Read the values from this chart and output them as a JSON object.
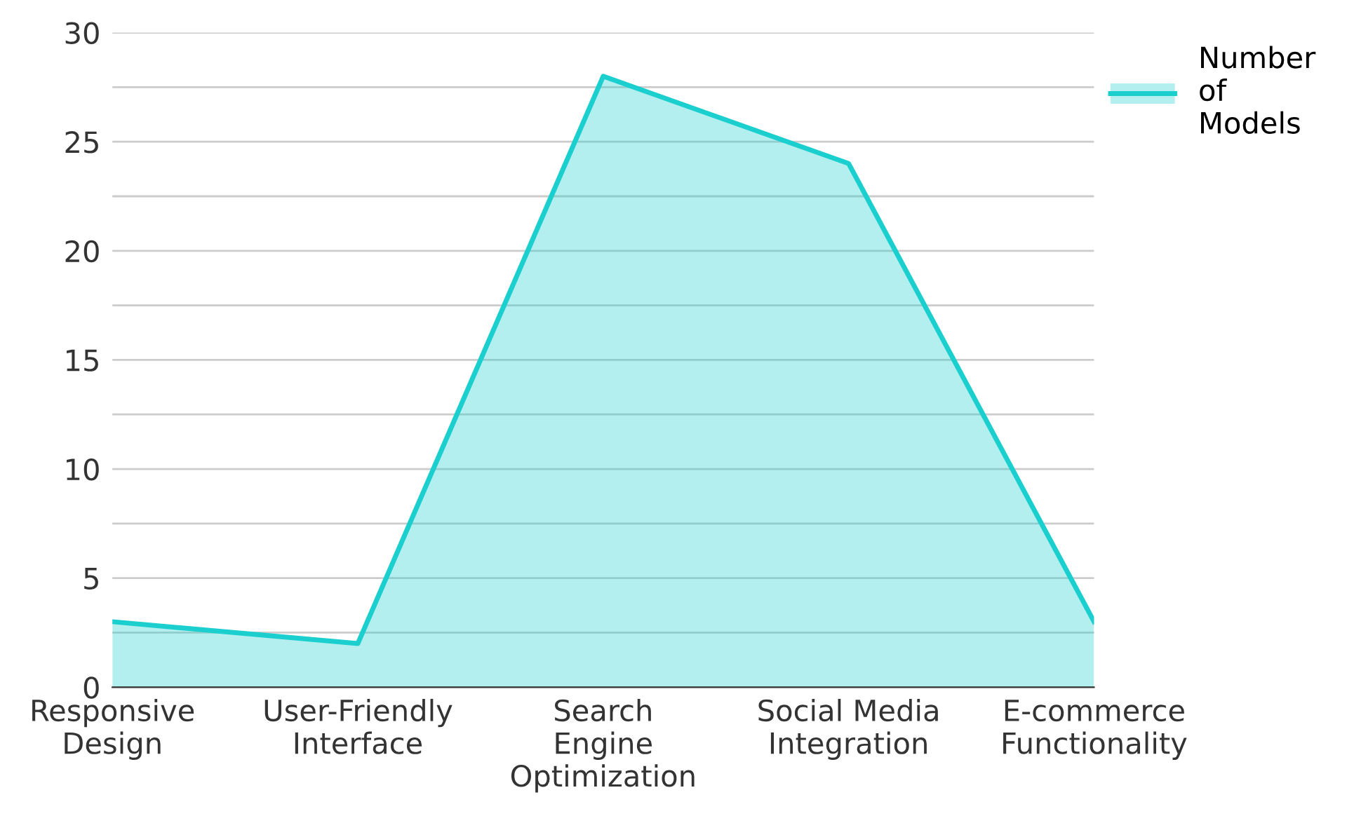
{
  "chart_data": {
    "type": "area",
    "categories": [
      "Responsive Design",
      "User-Friendly Interface",
      "Search Engine Optimization",
      "Social Media Integration",
      "E-commerce Functionality"
    ],
    "series": [
      {
        "name": "Number of Models",
        "color": "#1ccfcf",
        "values": [
          3,
          2,
          28,
          24,
          3
        ]
      }
    ],
    "ylim": [
      0,
      30
    ],
    "yticks": [
      0,
      {
        "value": 2.5,
        "label": null
      },
      5,
      {
        "value": 7.5,
        "label": null
      },
      10,
      {
        "value": 12.5,
        "label": null
      },
      15,
      {
        "value": 17.5,
        "label": null
      },
      20,
      {
        "value": 22.5,
        "label": null
      },
      25,
      {
        "value": 27.5,
        "label": null
      },
      30
    ],
    "grid": "y",
    "legend": "top right"
  }
}
